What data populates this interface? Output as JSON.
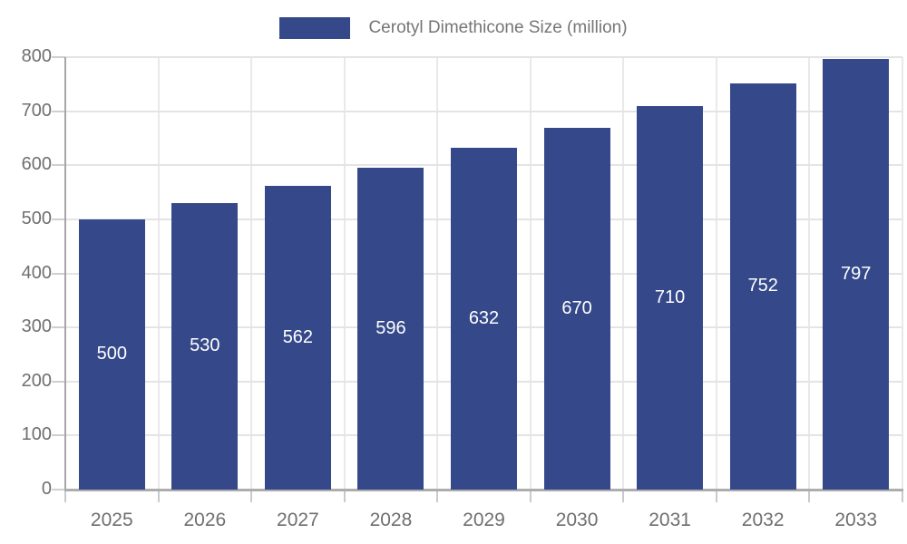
{
  "chart_data": {
    "type": "bar",
    "title": "",
    "legend_label": "Cerotyl Dimethicone Size (million)",
    "categories": [
      "2025",
      "2026",
      "2027",
      "2028",
      "2029",
      "2030",
      "2031",
      "2032",
      "2033"
    ],
    "values": [
      500,
      530,
      562,
      596,
      632,
      670,
      710,
      752,
      797
    ],
    "xlabel": "",
    "ylabel": "",
    "ylim": [
      0,
      800
    ],
    "yticks": [
      0,
      100,
      200,
      300,
      400,
      500,
      600,
      700,
      800
    ],
    "grid": true,
    "legend_position": "top-center",
    "bar_color": "#35498a",
    "value_label_color": "#ffffff",
    "axis_label_color": "#6f6f6f",
    "legend_text_color": "#757575"
  }
}
